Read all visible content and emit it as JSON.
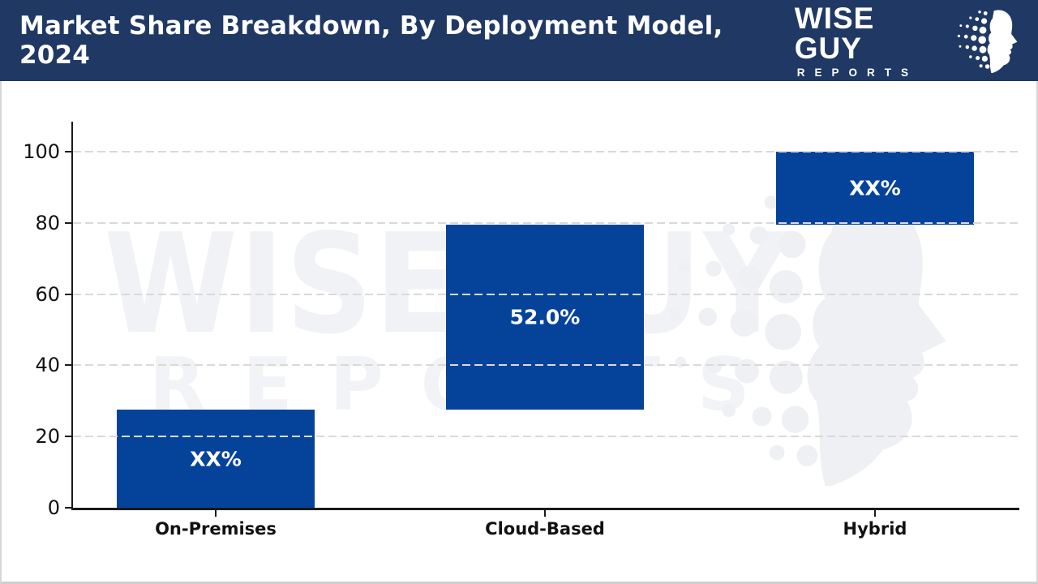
{
  "header": {
    "bg_color": "#203864",
    "title": "Market Share Breakdown, By Deployment Model, 2024",
    "logo": {
      "line1": "WISE GUY",
      "line2": "REPORTS"
    }
  },
  "watermark": {
    "line1": "WISE GUY",
    "line2": "REPORTS"
  },
  "chart_data": {
    "type": "bar",
    "subtype": "waterfall",
    "title": "Market Share Breakdown, By Deployment Model, 2024",
    "xlabel": "",
    "ylabel": "",
    "categories": [
      "On-Premises",
      "Cloud-Based",
      "Hybrid"
    ],
    "segments": [
      {
        "category": "On-Premises",
        "start": 0,
        "end": 27.5,
        "value_est": 27.5,
        "label": "XX%"
      },
      {
        "category": "Cloud-Based",
        "start": 27.5,
        "end": 79.5,
        "value_est": 52.0,
        "label": "52.0%"
      },
      {
        "category": "Hybrid",
        "start": 79.5,
        "end": 100,
        "value_est": 20.5,
        "label": "XX%"
      }
    ],
    "ylim": [
      0,
      100
    ],
    "yticks": [
      0,
      20,
      40,
      60,
      80,
      100
    ],
    "grid": {
      "axis": "y",
      "style": "dashed",
      "color": "#d9d9d9"
    },
    "legend": null,
    "bar_color": "#05439b",
    "bar_label_color": "#ffffff",
    "axis_color": "#1a1a1a"
  }
}
